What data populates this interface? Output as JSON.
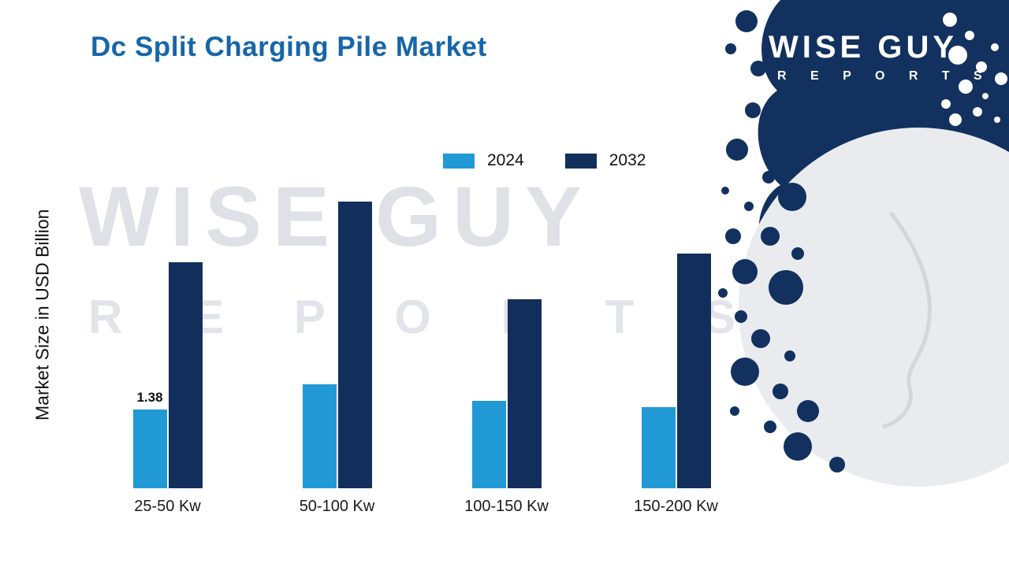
{
  "title": "Dc Split Charging Pile Market",
  "ylabel": "Market Size in USD Billion",
  "watermark": {
    "line1": "WISE GUY",
    "line2": "R E P O R T S"
  },
  "logo": {
    "line1": "WISE GUY",
    "line2": "R E P O R T S"
  },
  "colors": {
    "title_blue": "#1666a8",
    "series_2024": "#2199d5",
    "series_2032": "#122f5c",
    "panel_navy": "#12315f",
    "watermark_gray": "#dfe1e6"
  },
  "chart_data": {
    "type": "bar",
    "title": "Dc Split Charging Pile Market",
    "xlabel": "",
    "ylabel": "Market Size in USD Billion",
    "categories": [
      "25-50 Kw",
      "50-100 Kw",
      "100-150 Kw",
      "150-200 Kw"
    ],
    "series": [
      {
        "name": "2024",
        "color": "#2199d5",
        "values": [
          1.38,
          1.82,
          1.52,
          1.42
        ]
      },
      {
        "name": "2032",
        "color": "#122f5c",
        "values": [
          3.95,
          5.0,
          3.3,
          4.1
        ]
      }
    ],
    "annotations": [
      {
        "series": "2024",
        "category": "25-50 Kw",
        "text": "1.38"
      }
    ],
    "ylim": [
      0,
      5.5
    ],
    "grid": false,
    "legend_position": "top"
  }
}
